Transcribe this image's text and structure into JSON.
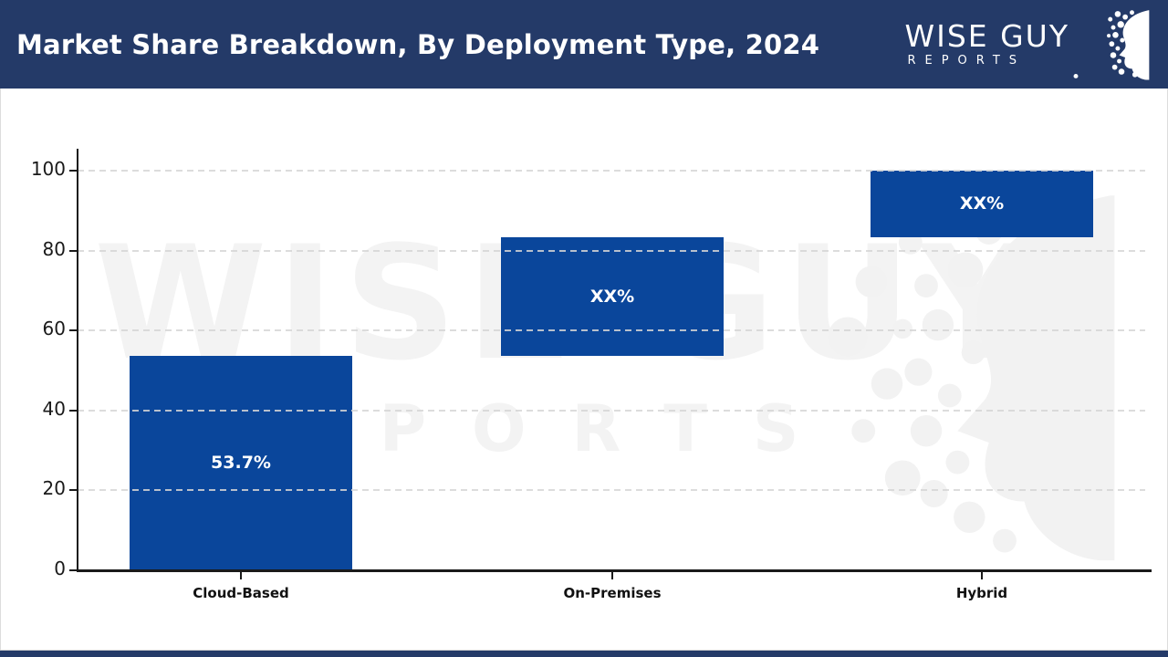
{
  "header": {
    "title": "Market Share Breakdown, By Deployment Type, 2024",
    "logo": {
      "line1": "WISE GUY",
      "line2": "REPORTS"
    }
  },
  "watermark": {
    "line1": "WISE GUY",
    "line2": "REPORTS"
  },
  "chart_data": {
    "type": "bar",
    "subtype": "waterfall-stacked-percentage",
    "title": "Market Share Breakdown, By Deployment Type, 2024",
    "categories": [
      "Cloud-Based",
      "On-Premises",
      "Hybrid"
    ],
    "segments": [
      {
        "category": "Cloud-Based",
        "start": 0,
        "end": 53.7,
        "label": "53.7%"
      },
      {
        "category": "On-Premises",
        "start": 53.7,
        "end": 83.4,
        "label": "XX%"
      },
      {
        "category": "Hybrid",
        "start": 83.4,
        "end": 100,
        "label": "XX%"
      }
    ],
    "xlabel": "",
    "ylabel": "",
    "ylim": [
      0,
      100
    ],
    "yticks": [
      0,
      20,
      40,
      60,
      80,
      100
    ],
    "grid": "horizontal-dashed",
    "legend": "none"
  },
  "colors": {
    "header_bg": "#243a68",
    "footer_bg": "#243a68",
    "bar": "#0a469b",
    "bar_label": "#ffffff",
    "axis": "#1a1a1a",
    "gridline": "#dcdcdc",
    "watermark": "#f3f3f3"
  }
}
